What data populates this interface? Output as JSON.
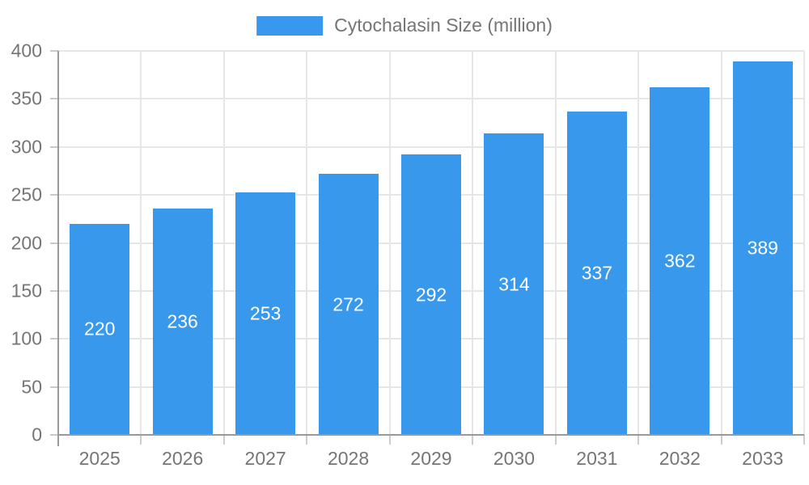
{
  "chart_data": {
    "type": "bar",
    "title": "",
    "legend": "Cytochalasin Size (million)",
    "legend_position": "top-center",
    "categories": [
      "2025",
      "2026",
      "2027",
      "2028",
      "2029",
      "2030",
      "2031",
      "2032",
      "2033"
    ],
    "values": [
      220,
      236,
      253,
      272,
      292,
      314,
      337,
      362,
      389
    ],
    "xlabel": "",
    "ylabel": "",
    "ylim": [
      0,
      400
    ],
    "yticks": [
      0,
      50,
      100,
      150,
      200,
      250,
      300,
      350,
      400
    ],
    "grid": "horizontal and vertical gridlines on",
    "bar_labels_inside": true,
    "colors": {
      "bar": "#3899EC",
      "bar_label": "#FFFFFF",
      "axis_label": "#757575",
      "gridline": "#E6E6E6",
      "axis_line": "#999999"
    }
  }
}
